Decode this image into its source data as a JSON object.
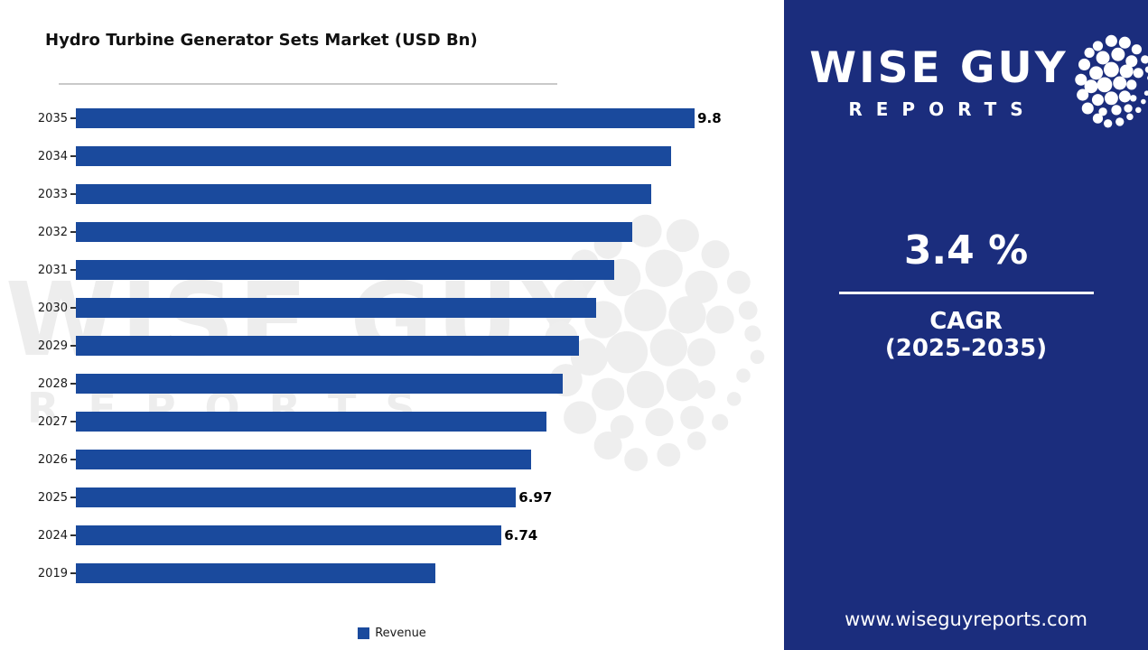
{
  "chart_data": {
    "type": "bar",
    "orientation": "horizontal",
    "title": "Hydro Turbine Generator Sets Market (USD Bn)",
    "categories": [
      "2035",
      "2034",
      "2033",
      "2032",
      "2031",
      "2030",
      "2029",
      "2028",
      "2027",
      "2026",
      "2025",
      "2024",
      "2019"
    ],
    "values": [
      9.8,
      9.42,
      9.11,
      8.81,
      8.52,
      8.24,
      7.97,
      7.71,
      7.45,
      7.21,
      6.97,
      6.74,
      5.7
    ],
    "data_labels": {
      "2035": "9.8",
      "2025": "6.97",
      "2024": "6.74"
    },
    "xlim": [
      0,
      11.1
    ],
    "legend": [
      "Revenue"
    ],
    "legend_position": "bottom-center",
    "grid": false
  },
  "sidebar": {
    "logo_line1": "WISE GUY",
    "logo_line2": "REPORTS",
    "cagr_value": "3.4 %",
    "cagr_label": "CAGR",
    "cagr_period": "(2025-2035)",
    "website": "www.wiseguyreports.com"
  },
  "colors": {
    "bar": "#1a4a9d",
    "panel": "#1b2d7d",
    "title_text": "#111111",
    "value_label_text": "#000000"
  }
}
